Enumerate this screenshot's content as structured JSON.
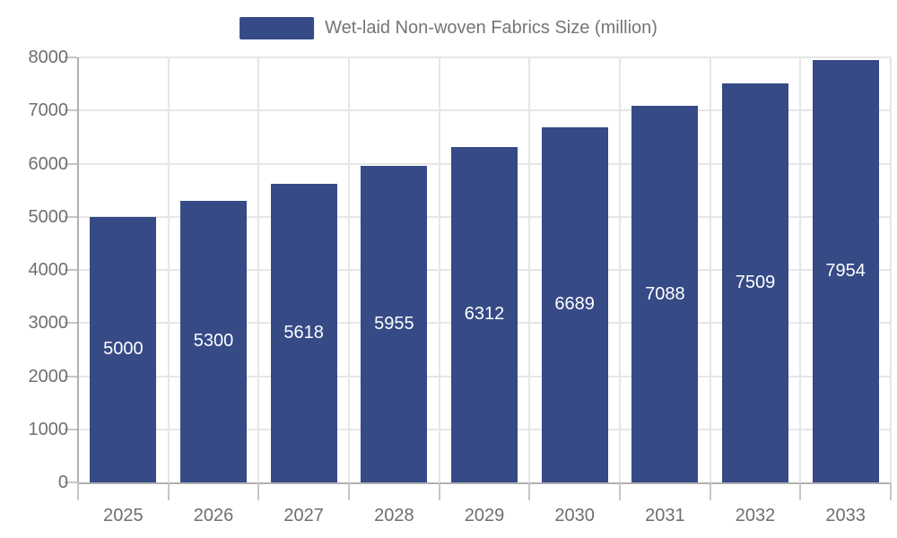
{
  "legend": {
    "label": "Wet-laid Non-woven Fabrics Size (million)"
  },
  "colors": {
    "bar": "#364a86",
    "legend_text": "#757575",
    "axis_label": "#6f6f6f",
    "axis_line": "#b0b0b0",
    "tick": "#c6c6c6",
    "grid_line": "#e6e6e6",
    "bar_label": "#ffffff",
    "background": "#ffffff"
  },
  "chart_data": {
    "type": "bar",
    "title": "Wet-laid Non-woven Fabrics Size (million)",
    "categories": [
      "2025",
      "2026",
      "2027",
      "2028",
      "2029",
      "2030",
      "2031",
      "2032",
      "2033"
    ],
    "values": [
      5000,
      5300,
      5618,
      5955,
      6312,
      6689,
      7088,
      7509,
      7954
    ],
    "series_name": "Wet-laid Non-woven Fabrics Size (million)",
    "xlabel": "",
    "ylabel": "",
    "ylim": [
      0,
      8000
    ],
    "y_tick_step": 1000,
    "y_tick_labels": [
      "0",
      "1000",
      "2000",
      "3000",
      "4000",
      "5000",
      "6000",
      "7000",
      "8000"
    ],
    "grid": true,
    "legend_position": "top-center",
    "bar_value_labels": "inside-center"
  }
}
